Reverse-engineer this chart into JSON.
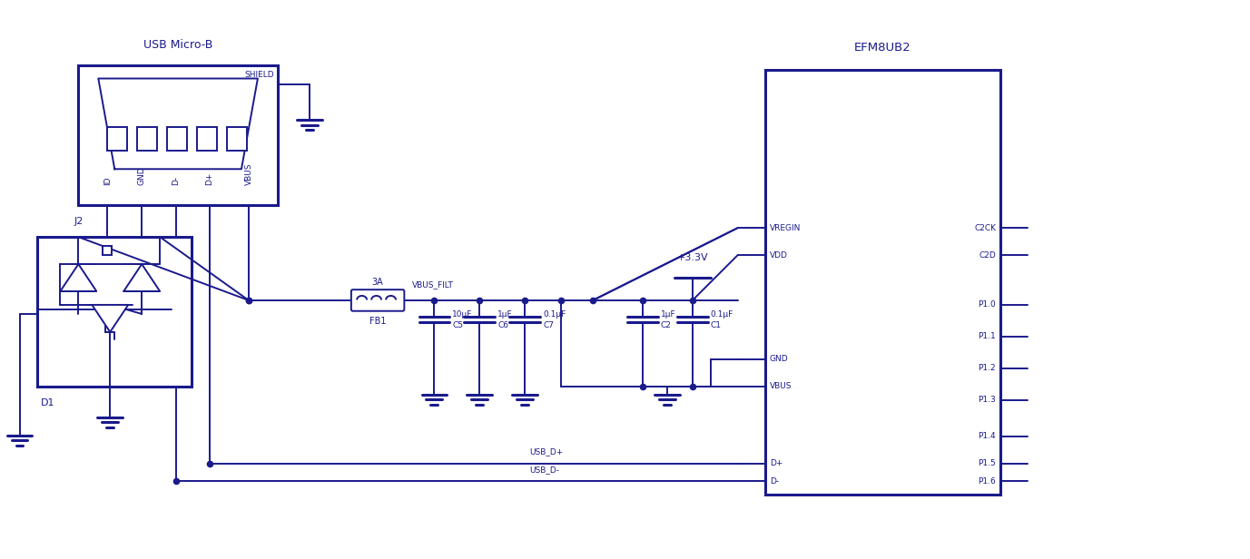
{
  "bg_color": "#ffffff",
  "lc": "#1a1a8c",
  "tc": "#1a1a8c",
  "figsize": [
    13.77,
    6.16
  ],
  "dpi": 100,
  "usb_label": "USB Micro-B",
  "j2_label": "J2",
  "shield_label": "SHIELD",
  "pin_labels": [
    "ID",
    "GND",
    "D-",
    "D+",
    "VBUS"
  ],
  "fb1_label": "FB1",
  "fb1_value": "3A",
  "vbus_filt_label": "VBUS_FILT",
  "v33_label": "+3.3V",
  "c5_value": "10μF",
  "c5_label": "C5",
  "c6_value": "1μF",
  "c6_label": "C6",
  "c7_value": "0.1μF",
  "c7_label": "C7",
  "c2_value": "1μF",
  "c2_label": "C2",
  "c1_value": "0.1μF",
  "c1_label": "C1",
  "d1_label": "D1",
  "efm_label": "EFM8UB2",
  "efm_left_pins": [
    "VREGIN",
    "VDD",
    "GND",
    "VBUS",
    "D+",
    "D-"
  ],
  "efm_right_pins": [
    "C2CK",
    "C2D",
    "P1.0",
    "P1.1",
    "P1.2",
    "P1.3",
    "P1.4",
    "P1.5",
    "P1.6"
  ],
  "usb_dp_label": "USB_D+",
  "usb_dm_label": "USB_D-"
}
